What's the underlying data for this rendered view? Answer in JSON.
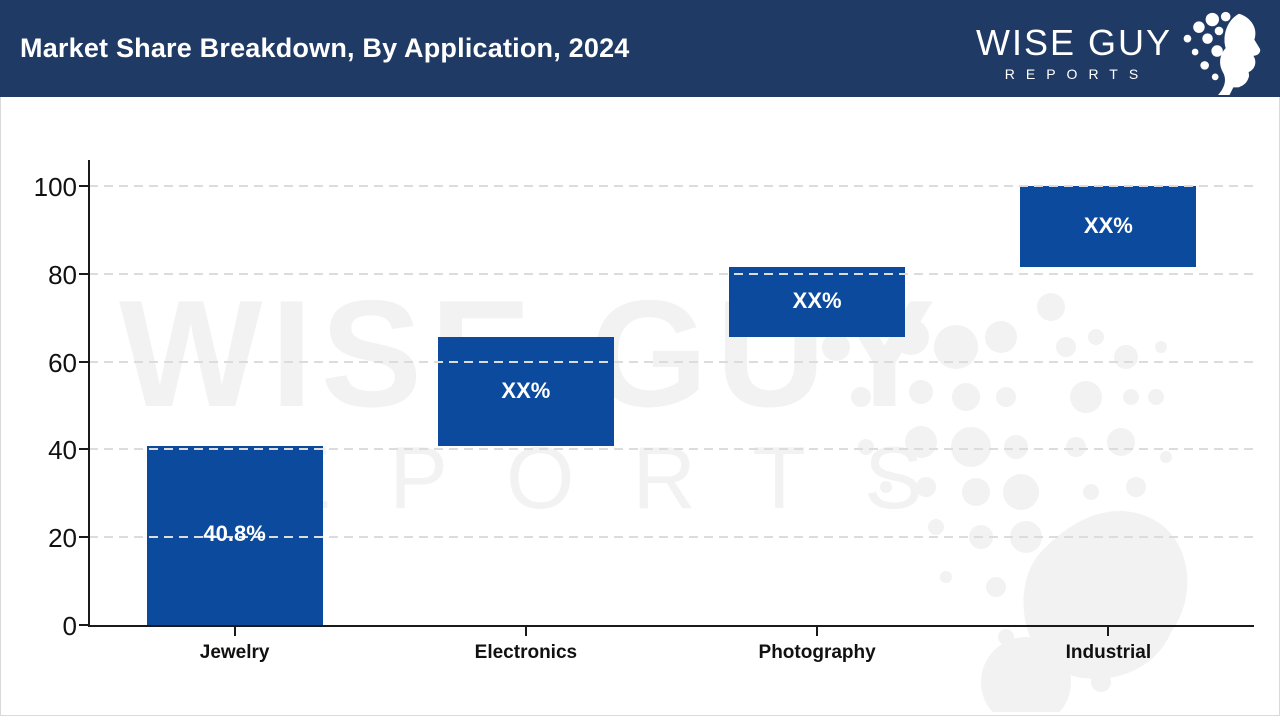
{
  "header": {
    "title": "Market Share Breakdown, By Application, 2024",
    "logo": {
      "line1": "WISE GUY",
      "line2": "REPORTS"
    }
  },
  "watermark": {
    "line1": "WISE GUY",
    "line2": "REPORTS"
  },
  "chart_data": {
    "type": "bar",
    "subtype": "waterfall",
    "title": "Market Share Breakdown, By Application, 2024",
    "categories": [
      "Jewelry",
      "Electronics",
      "Photography",
      "Industrial"
    ],
    "series": [
      {
        "name": "Market Share",
        "segments": [
          {
            "category": "Jewelry",
            "start": 0,
            "end": 40.8,
            "label": "40.8%"
          },
          {
            "category": "Electronics",
            "start": 40.8,
            "end": 65.5,
            "label": "XX%"
          },
          {
            "category": "Photography",
            "start": 65.5,
            "end": 81.5,
            "label": "XX%"
          },
          {
            "category": "Industrial",
            "start": 81.5,
            "end": 100,
            "label": "XX%"
          }
        ]
      }
    ],
    "ylim": [
      0,
      100
    ],
    "yticks": [
      0,
      20,
      40,
      60,
      80,
      100
    ],
    "grid": "horizontal-dashed",
    "legend": "none",
    "bar_color": "#0b4a9c",
    "value_label_color": "#ffffff"
  },
  "colors": {
    "header_bg": "#203a66",
    "bar": "#0b4a9c",
    "axis": "#1a1a1a",
    "grid": "#dcdcdc",
    "watermark": "#f2f2f2"
  }
}
